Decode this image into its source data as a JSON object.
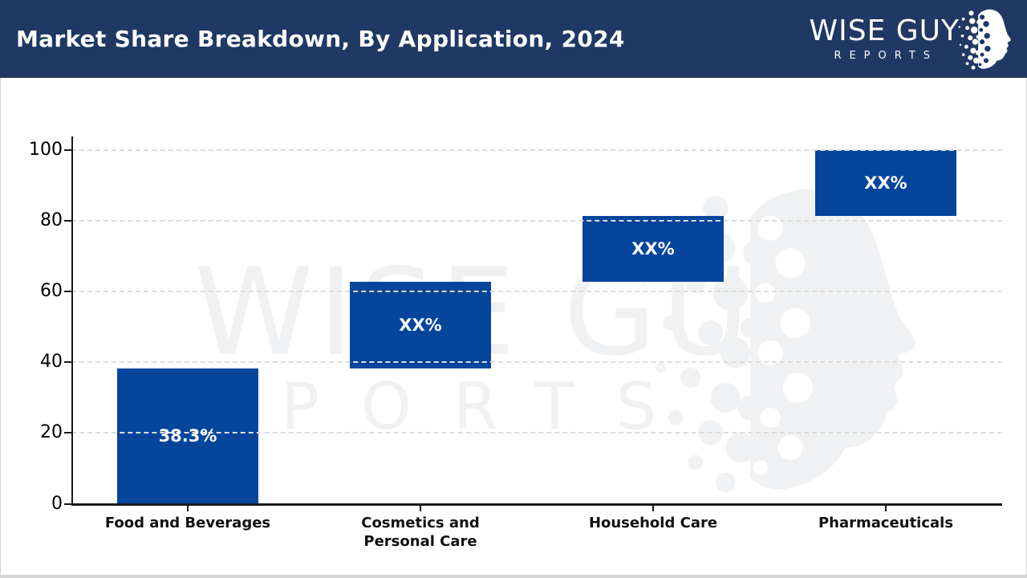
{
  "header": {
    "title": "Market Share Breakdown, By Application, 2024",
    "background_color": "#1f3864",
    "logo": {
      "line1": "WISE GUY",
      "line2": "REPORTS"
    }
  },
  "watermark": {
    "line1": "WISE GUY",
    "line2": "REPORTS",
    "color": "#f0f1f2"
  },
  "chart_data": {
    "type": "bar",
    "subtype": "waterfall",
    "title": "Market Share Breakdown, By Application, 2024",
    "categories": [
      "Food and Beverages",
      "Cosmetics and Personal Care",
      "Household Care",
      "Pharmaceuticals"
    ],
    "category_lines": [
      [
        "Food and Beverages"
      ],
      [
        "Cosmetics and",
        "Personal Care"
      ],
      [
        "Household Care"
      ],
      [
        "Pharmaceuticals"
      ]
    ],
    "segments": [
      {
        "category": "Food and Beverages",
        "start": 0,
        "end": 38.3,
        "label": "38.3%"
      },
      {
        "category": "Cosmetics and Personal Care",
        "start": 38.3,
        "end": 62.8,
        "label": "XX%"
      },
      {
        "category": "Household Care",
        "start": 62.8,
        "end": 81.3,
        "label": "XX%"
      },
      {
        "category": "Pharmaceuticals",
        "start": 81.3,
        "end": 100,
        "label": "XX%"
      }
    ],
    "xlabel": "",
    "ylabel": "",
    "ylim": [
      0,
      100
    ],
    "yticks": [
      0,
      20,
      40,
      60,
      80,
      100
    ],
    "grid": {
      "axis": "y",
      "style": "dashed",
      "color": "#dcdcdc",
      "above_bars": true
    },
    "legend": "none",
    "bar_color": "#05459c",
    "bar_label_color": "#ffffff"
  }
}
